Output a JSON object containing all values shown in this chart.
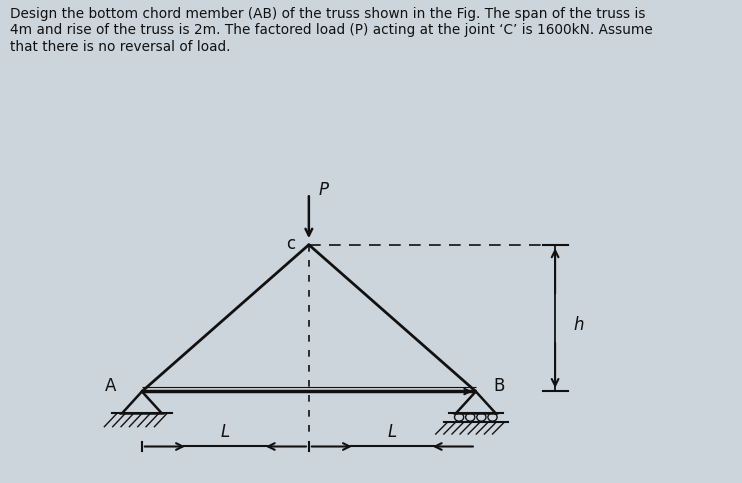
{
  "title_text": "Design the bottom chord member (AB) of the truss shown in the Fig. The span of the truss is\n4m and rise of the truss is 2m. The factored load (P) acting at the joint ‘C’ is 1600kN. Assume\nthat there is no reversal of load.",
  "background_color": "#cdd5dc",
  "diagram_bg": "#f2f2f0",
  "truss": {
    "A": [
      0.0,
      0.0
    ],
    "B": [
      4.0,
      0.0
    ],
    "C": [
      2.0,
      2.0
    ]
  },
  "text_color": "#111111",
  "line_color": "#111111"
}
